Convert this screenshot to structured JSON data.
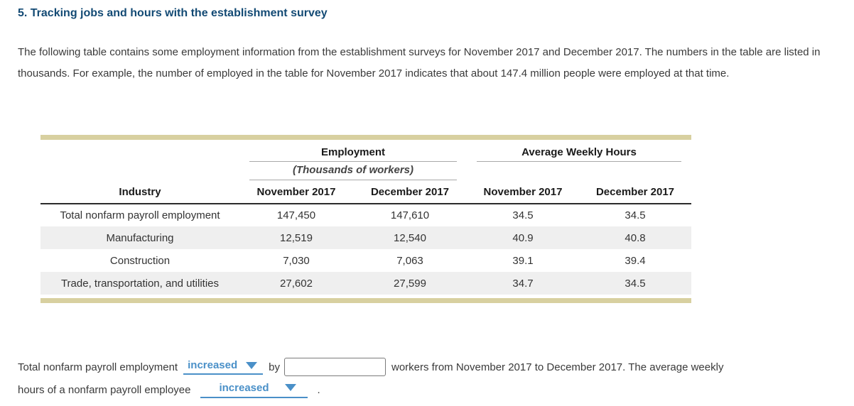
{
  "title": "5. Tracking jobs and hours with the establishment survey",
  "intro": "The following table contains some employment information from the establishment surveys for November 2017 and December 2017. The numbers in the table are listed in thousands. For example, the number of employed in the table for November 2017 indicates that about 147.4 million people were employed at that time.",
  "table": {
    "group_headers": [
      {
        "label": "Employment",
        "sublabel": "(Thousands of workers)"
      },
      {
        "label": "Average Weekly Hours",
        "sublabel": ""
      }
    ],
    "columns": [
      "Industry",
      "November 2017",
      "December 2017",
      "November 2017",
      "December 2017"
    ],
    "rows": [
      {
        "industry": "Total nonfarm payroll employment",
        "emp_nov": "147,450",
        "emp_dec": "147,610",
        "awh_nov": "34.5",
        "awh_dec": "34.5"
      },
      {
        "industry": "Manufacturing",
        "emp_nov": "12,519",
        "emp_dec": "12,540",
        "awh_nov": "40.9",
        "awh_dec": "40.8"
      },
      {
        "industry": "Construction",
        "emp_nov": "7,030",
        "emp_dec": "7,063",
        "awh_nov": "39.1",
        "awh_dec": "39.4"
      },
      {
        "industry": "Trade, transportation, and utilities",
        "emp_nov": "27,602",
        "emp_dec": "27,599",
        "awh_nov": "34.7",
        "awh_dec": "34.5"
      }
    ]
  },
  "question": {
    "line1_part1": "Total nonfarm payroll employment",
    "dropdown1_value": "increased",
    "line1_part2": "by",
    "input_value": "",
    "line1_part3": "workers from November 2017 to December 2017. The average weekly",
    "line2_part1": "hours of a nonfarm payroll employee",
    "dropdown2_value": "increased",
    "line2_part2": "."
  },
  "colors": {
    "title_navy": "#134a74",
    "accent_blue": "#4a90c8",
    "tan_bar": "#d8d0a0",
    "row_alt": "#efefef"
  }
}
